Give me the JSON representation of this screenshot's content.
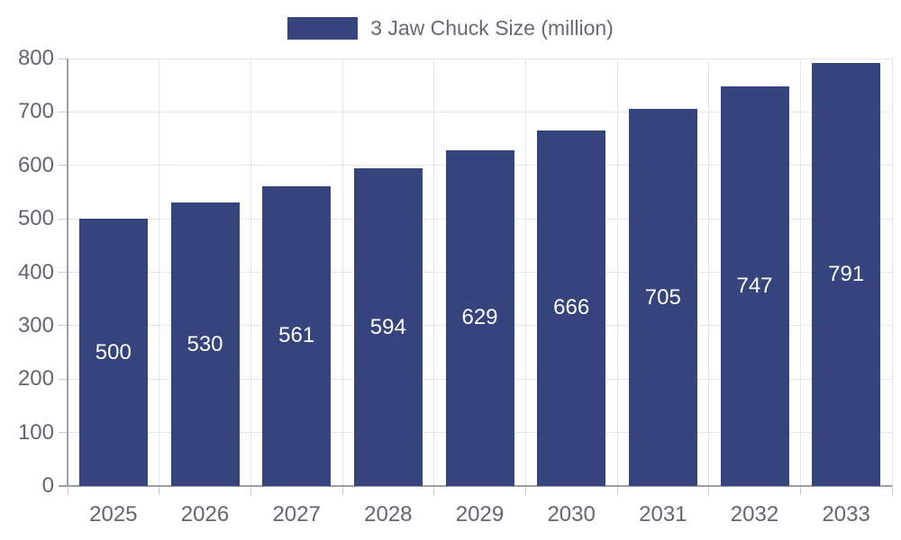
{
  "legend": {
    "label": "3 Jaw Chuck Size (million)"
  },
  "chart_data": {
    "type": "bar",
    "title": "",
    "categories": [
      "2025",
      "2026",
      "2027",
      "2028",
      "2029",
      "2030",
      "2031",
      "2032",
      "2033"
    ],
    "series": [
      {
        "name": "3 Jaw Chuck Size (million)",
        "values": [
          500,
          530,
          561,
          594,
          629,
          666,
          705,
          747,
          791
        ]
      }
    ],
    "xlabel": "",
    "ylabel": "",
    "ylim": [
      0,
      800
    ],
    "y_ticks": [
      0,
      100,
      200,
      300,
      400,
      500,
      600,
      700,
      800
    ],
    "grid": true,
    "legend_position": "top-center",
    "value_label_position": "inside-center",
    "colors": {
      "bar": "#36447D",
      "bar_label": "#FFFFFF",
      "axis_label": "#63666E",
      "legend_text": "#666A71",
      "axis_line": "#9B9EA5",
      "tick": "#C7CACF",
      "gridline": "#E4E7ED",
      "background": "#FFFFFF"
    }
  }
}
